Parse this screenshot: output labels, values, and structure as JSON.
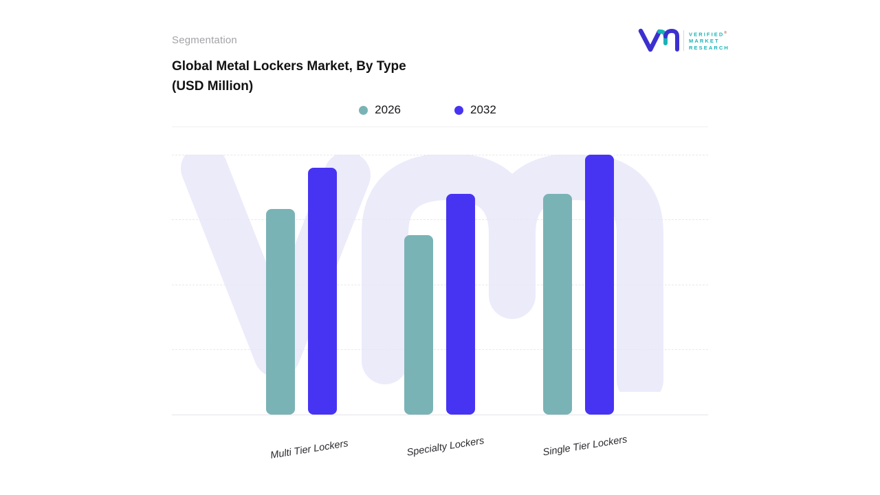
{
  "header": {
    "eyebrow": "Segmentation",
    "title_line1": "Global Metal Lockers Market, By Type",
    "title_line2": "(USD Million)"
  },
  "logo": {
    "brand_lines": [
      "VERIFIED",
      "MARKET",
      "RESEARCH"
    ],
    "registered_mark": "®",
    "monogram_indigo": "#3b30cf",
    "monogram_teal": "#17b3b6"
  },
  "colors": {
    "series_2026": "#7ab3b5",
    "series_2032": "#4734f2",
    "watermark": "#ecebfa",
    "gridline": "#e8e8ec",
    "axis_line": "#e4e4e8"
  },
  "chart_data": {
    "type": "bar",
    "title": "Global Metal Lockers Market, By Type (USD Million)",
    "categories": [
      "Multi Tier Lockers",
      "Specialty Lockers",
      "Single Tier Lockers"
    ],
    "series": [
      {
        "name": "2026",
        "color": "#7ab3b5",
        "values": [
          79,
          69,
          85
        ]
      },
      {
        "name": "2032",
        "color": "#4734f2",
        "values": [
          95,
          85,
          100
        ]
      }
    ],
    "ylim": [
      0,
      100
    ],
    "value_axis_labels_visible": false,
    "gridlines": "dashed-horizontal",
    "legend_position": "top-center",
    "note": "no numeric axis shown; values estimated relative to tallest bar = 100"
  }
}
